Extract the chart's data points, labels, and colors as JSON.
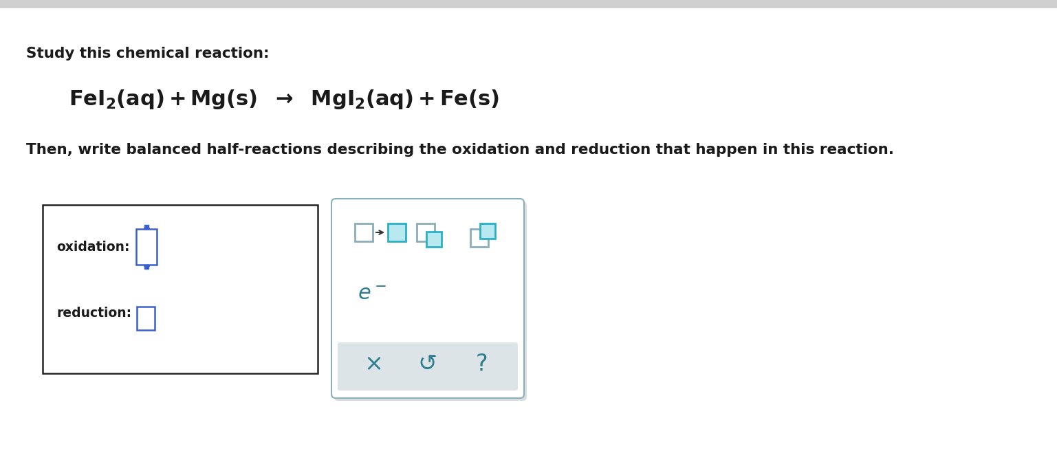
{
  "bg_color": "#ffffff",
  "text_color": "#1a1a1a",
  "teal_fill": "#b8e8f0",
  "teal_border": "#2ab0c5",
  "dark_teal": "#2d7d8e",
  "gray_border": "#8aafba",
  "blue_box": "#3b5fcc",
  "light_gray": "#dde4e8",
  "panel_shadow": "#c0c8cc",
  "line1": "Study this chemical reaction:",
  "line3": "Then, write balanced half-reactions describing the oxidation and reduction that happen in this reaction.",
  "oxidation_label": "oxidation:",
  "reduction_label": "reduction:",
  "top_bar_color": "#d0d0d0",
  "top_bar_height": 12
}
